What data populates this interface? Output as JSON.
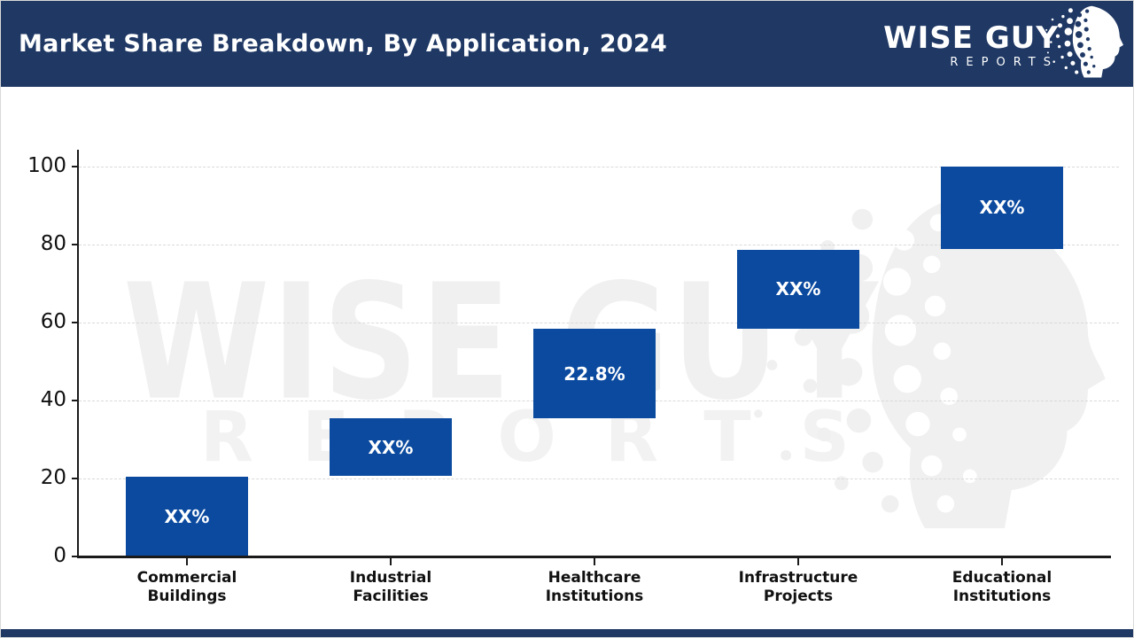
{
  "header": {
    "title": "Market Share Breakdown, By Application, 2024",
    "bg_color": "#1F3864",
    "logo": {
      "line1": "WISE GUY",
      "line2": "REPORTS"
    }
  },
  "watermark": {
    "line1": "WISE GUY",
    "line2": "REPORTS"
  },
  "footer": {
    "bg_color": "#1F3864"
  },
  "chart_data": {
    "type": "bar",
    "subtype": "floating-waterfall",
    "categories": [
      "Commercial Buildings",
      "Industrial Facilities",
      "Healthcare Institutions",
      "Infrastructure Projects",
      "Educational Institutions"
    ],
    "bars": [
      {
        "start": 0,
        "end": 20.4,
        "label": "XX%"
      },
      {
        "start": 20.6,
        "end": 35.5,
        "label": "XX%"
      },
      {
        "start": 35.5,
        "end": 58.3,
        "label": "22.8%"
      },
      {
        "start": 58.5,
        "end": 78.6,
        "label": "XX%"
      },
      {
        "start": 78.9,
        "end": 100,
        "label": "XX%"
      }
    ],
    "y_ticks": [
      0,
      20,
      40,
      60,
      80,
      100
    ],
    "ylim": [
      0,
      104
    ],
    "bar_color": "#0B4A9F",
    "grid": {
      "orientation": "horizontal",
      "style": "dashed",
      "color": "#d9d9d9"
    },
    "axis_color": "#1a1a1a",
    "xlabel": "",
    "ylabel": ""
  }
}
